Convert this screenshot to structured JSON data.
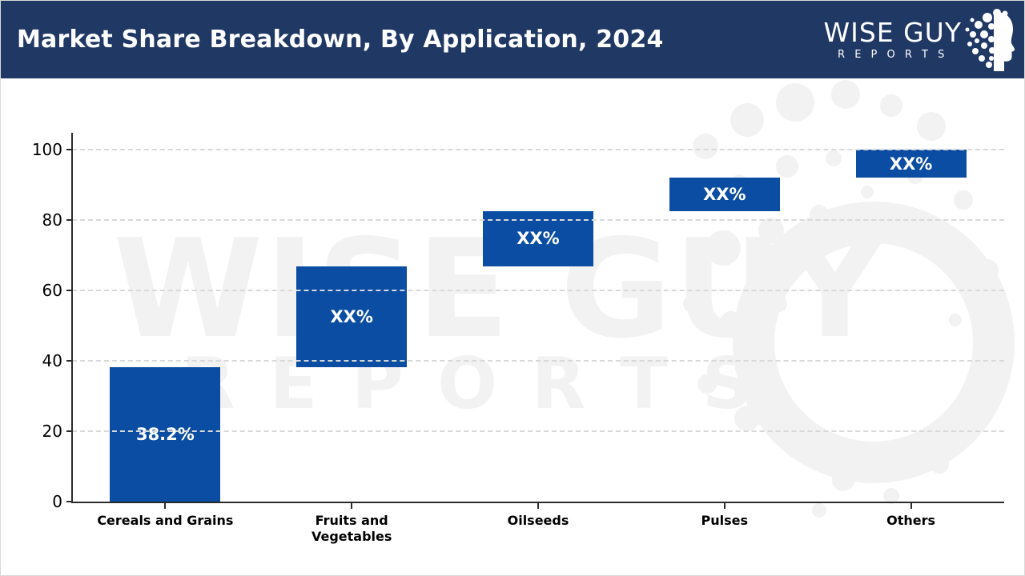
{
  "header": {
    "title": "Market Share Breakdown, By Application, 2024",
    "bg_color": "#203864",
    "logo": {
      "wordmark": "WISE GUY",
      "subtext": "R E P O R T S"
    }
  },
  "watermark": {
    "wordmark": "WISE GUY",
    "subtext": "R E P O R T S"
  },
  "chart_data": {
    "type": "bar",
    "subtype": "waterfall",
    "title": "Market Share Breakdown, By Application, 2024",
    "categories": [
      "Cereals and Grains",
      "Fruits and Vegetables",
      "Oilseeds",
      "Pulses",
      "Others"
    ],
    "segments": [
      {
        "category": "Cereals and Grains",
        "start": 0,
        "end": 38.2,
        "label": "38.2%"
      },
      {
        "category": "Fruits and Vegetables",
        "start": 38.2,
        "end": 66.8,
        "label": "XX%"
      },
      {
        "category": "Oilseeds",
        "start": 66.8,
        "end": 82.6,
        "label": "XX%"
      },
      {
        "category": "Pulses",
        "start": 82.6,
        "end": 92.0,
        "label": "XX%"
      },
      {
        "category": "Others",
        "start": 92.0,
        "end": 100.0,
        "label": "XX%"
      }
    ],
    "values_delta": [
      38.2,
      28.6,
      15.8,
      9.4,
      8.0
    ],
    "xlabel": "",
    "ylabel": "",
    "yticks": [
      0,
      20,
      40,
      60,
      80,
      100
    ],
    "ylim": [
      0,
      105
    ],
    "grid": true,
    "gridline_style": "dashed",
    "legend": "none",
    "colors": {
      "bar": "#0b4da2",
      "bar_label": "#ffffff",
      "axis": "#2b2b2b",
      "gridline": "#d9d9d9",
      "tick_label": "#000000",
      "header_bg": "#203864",
      "watermark": "#f2f2f2"
    }
  }
}
